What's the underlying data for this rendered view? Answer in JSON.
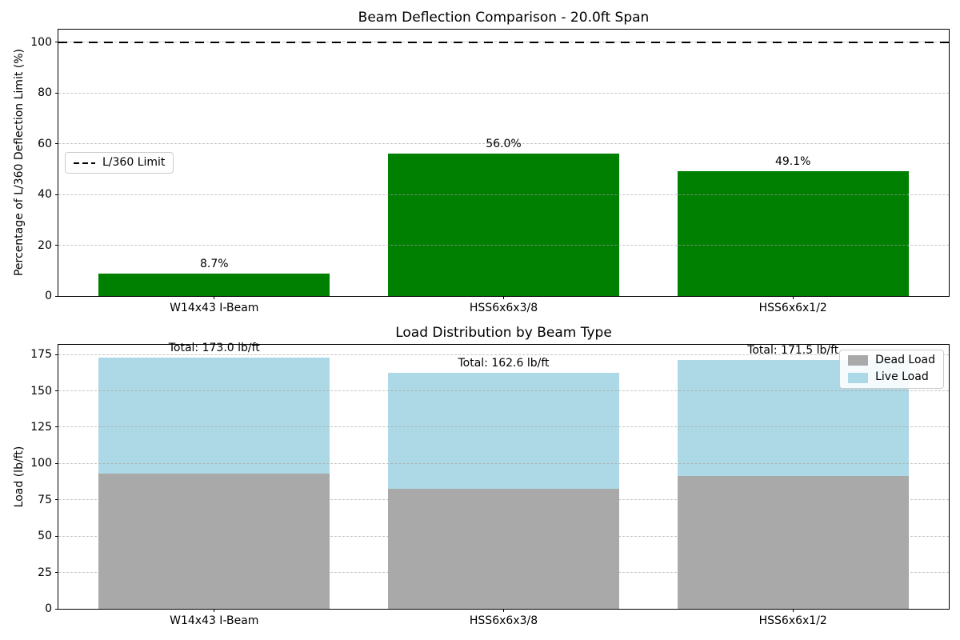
{
  "chart_data": [
    {
      "type": "bar",
      "title": "Beam Deflection Comparison - 20.0ft Span",
      "xlabel": "",
      "ylabel": "Percentage of L/360 Deflection Limit (%)",
      "categories": [
        "W14x43 I-Beam",
        "HSS6x6x3/8",
        "HSS6x6x1/2"
      ],
      "values": [
        8.7,
        56.0,
        49.1
      ],
      "bar_labels": [
        "8.7%",
        "56.0%",
        "49.1%"
      ],
      "bar_color": "#008000",
      "ylim": [
        0,
        105
      ],
      "yticks": [
        0,
        20,
        40,
        60,
        80,
        100
      ],
      "grid": true,
      "legend_position": "center-left",
      "reference_line": {
        "value": 100,
        "label": "L/360 Limit",
        "color": "#000000",
        "style": "dashed"
      }
    },
    {
      "type": "bar",
      "stacked": true,
      "title": "Load Distribution by Beam Type",
      "xlabel": "",
      "ylabel": "Load (lb/ft)",
      "categories": [
        "W14x43 I-Beam",
        "HSS6x6x3/8",
        "HSS6x6x1/2"
      ],
      "series": [
        {
          "name": "Dead Load",
          "color": "#a9a9a9",
          "values": [
            93.0,
            82.6,
            91.5
          ]
        },
        {
          "name": "Live Load",
          "color": "#add8e6",
          "values": [
            80.0,
            80.0,
            80.0
          ]
        }
      ],
      "totals": [
        173.0,
        162.6,
        171.5
      ],
      "total_labels": [
        "Total: 173.0 lb/ft",
        "Total: 162.6 lb/ft",
        "Total: 171.5 lb/ft"
      ],
      "ylim": [
        0,
        181.7
      ],
      "yticks": [
        0,
        25,
        50,
        75,
        100,
        125,
        150,
        175
      ],
      "grid": true,
      "legend_position": "upper-right"
    }
  ]
}
